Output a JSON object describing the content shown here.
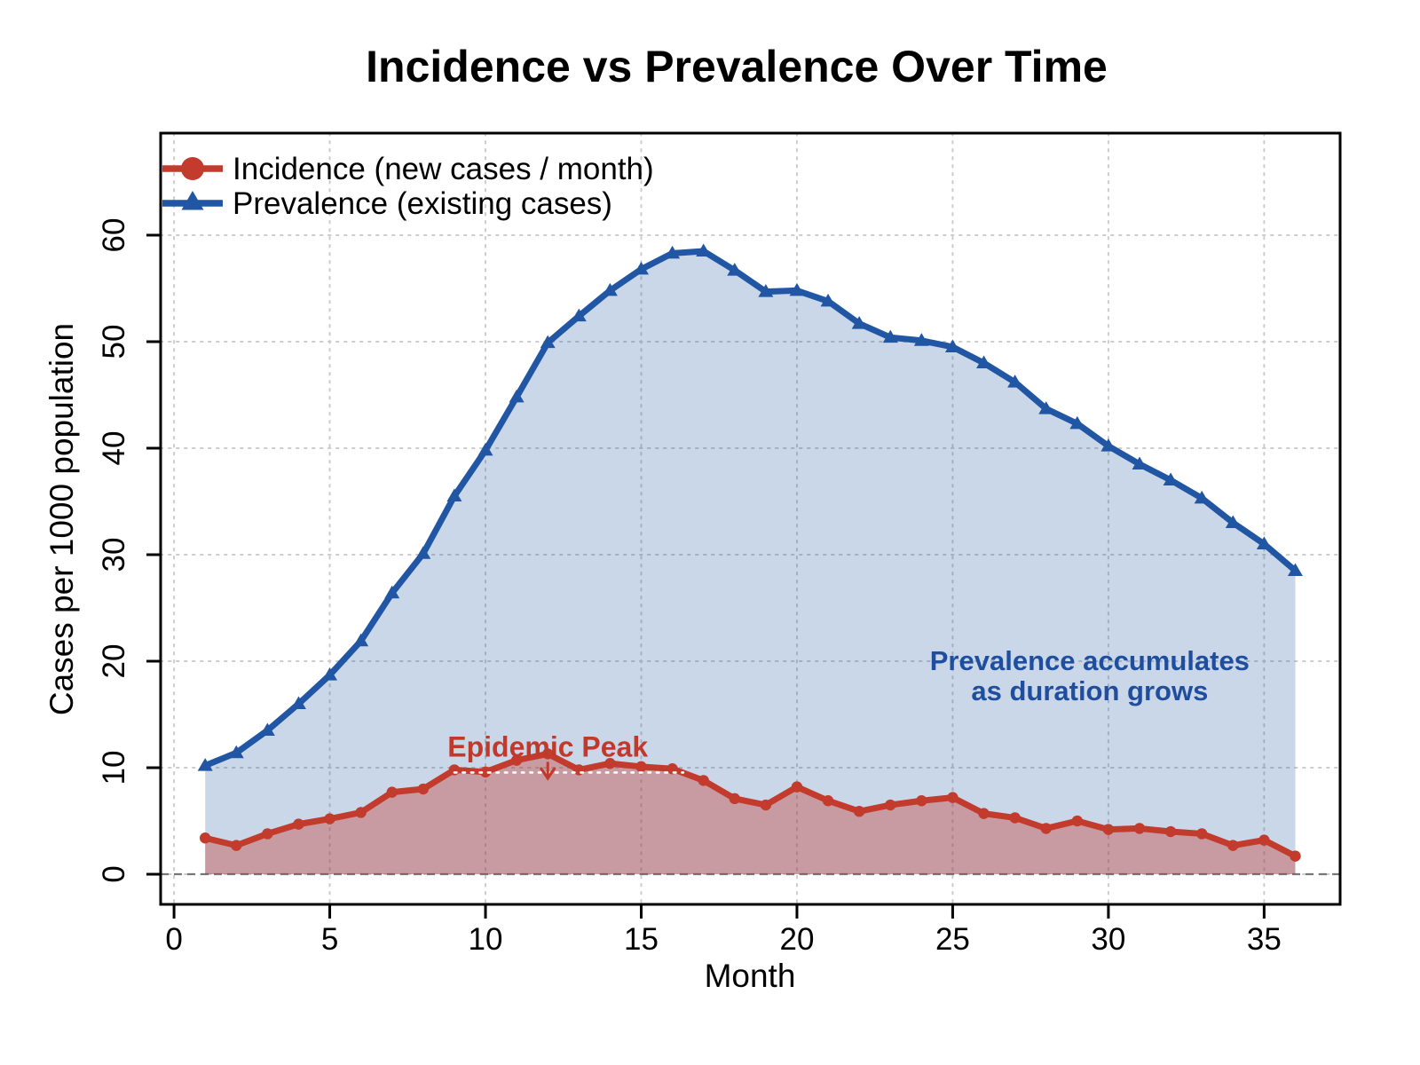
{
  "title": "Incidence vs Prevalence Over Time",
  "chart_data": {
    "type": "line",
    "title": "Incidence vs Prevalence Over Time",
    "xlabel": "Month",
    "ylabel": "Cases per 1000 population",
    "x": [
      1,
      2,
      3,
      4,
      5,
      6,
      7,
      8,
      9,
      10,
      11,
      12,
      13,
      14,
      15,
      16,
      17,
      18,
      19,
      20,
      21,
      22,
      23,
      24,
      25,
      26,
      27,
      28,
      29,
      30,
      31,
      32,
      33,
      34,
      35,
      36
    ],
    "series": [
      {
        "name": "Incidence (new cases / month)",
        "marker": "circle",
        "color": "#c23b2c",
        "values": [
          3.4,
          2.7,
          3.8,
          4.7,
          5.2,
          5.8,
          7.7,
          8.0,
          9.8,
          9.6,
          10.7,
          11.3,
          9.8,
          10.4,
          10.1,
          9.9,
          8.8,
          7.1,
          6.5,
          8.2,
          6.9,
          5.9,
          6.5,
          6.9,
          7.2,
          5.7,
          5.3,
          4.3,
          5.0,
          4.2,
          4.3,
          4.0,
          3.8,
          2.7,
          3.2,
          1.7
        ]
      },
      {
        "name": "Prevalence (existing cases)",
        "marker": "triangle",
        "color": "#2156a5",
        "values": [
          10.2,
          11.4,
          13.5,
          16.0,
          18.7,
          21.9,
          26.4,
          30.1,
          35.5,
          39.8,
          44.8,
          49.9,
          52.4,
          54.8,
          56.8,
          58.3,
          58.5,
          56.7,
          54.7,
          54.8,
          53.8,
          51.7,
          50.4,
          50.1,
          49.5,
          48.0,
          46.2,
          43.7,
          42.3,
          40.2,
          38.5,
          37.0,
          35.3,
          33.0,
          31.0,
          28.5
        ]
      }
    ],
    "xticks": [
      0,
      5,
      10,
      15,
      20,
      25,
      30,
      35
    ],
    "yticks": [
      0,
      10,
      20,
      30,
      40,
      50,
      60
    ],
    "xlim": [
      -0.43,
      37.44
    ],
    "ylim": [
      -2.83,
      69.58
    ],
    "grid": "dotted",
    "legend_position": "top-left",
    "zero_line": true,
    "peak_guide_line": {
      "from_month": 9.0,
      "to_month": 16.35,
      "value": 9.55
    },
    "annotations": [
      {
        "id": "epidemic-peak",
        "text": "Epidemic Peak",
        "x": 12,
        "y": 11.9,
        "arrow_from_y": 10.55,
        "arrow_to_y": 9.0
      },
      {
        "id": "prevalence-note",
        "line1": "Prevalence accumulates",
        "line2": "as duration grows",
        "x": 29.4,
        "y": 18.6
      }
    ],
    "colors": {
      "incidence": "#c23b2c",
      "prevalence": "#2156a5",
      "incidence_fill": "rgba(194,59,44,0.38)",
      "prevalence_fill": "rgba(33,86,165,0.24)",
      "grid": "#cccccc",
      "zero_line": "#777777",
      "peak_guide": "#ffffff",
      "annotation_red": "#c0392b",
      "annotation_blue": "#1f4e9f",
      "axis": "#000000"
    }
  }
}
